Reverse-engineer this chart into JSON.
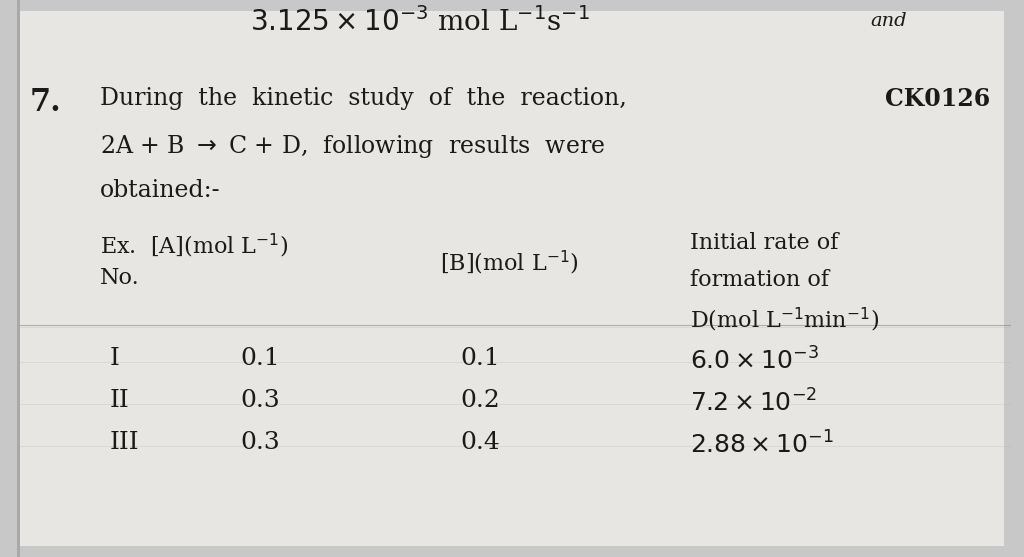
{
  "bg_color": "#c8c8c8",
  "page_color": "#e8e6e2",
  "question_number": "7.",
  "ck_code": "CK0126",
  "font_color": "#1a1a1a",
  "font_size_q": 20,
  "font_size_main": 16,
  "font_size_header": 15,
  "font_size_data": 17,
  "font_size_top": 18,
  "rows": [
    [
      "I",
      "0.1",
      "0.1",
      "-3"
    ],
    [
      "II",
      "0.3",
      "0.2",
      "-2"
    ],
    [
      "III",
      "0.3",
      "0.4",
      "-1"
    ]
  ],
  "rate_bases": [
    "6.0",
    "7.2",
    "2.88"
  ],
  "top_text_top": "and",
  "top_formula_left": "3.125",
  "top_formula_exp": "-3"
}
